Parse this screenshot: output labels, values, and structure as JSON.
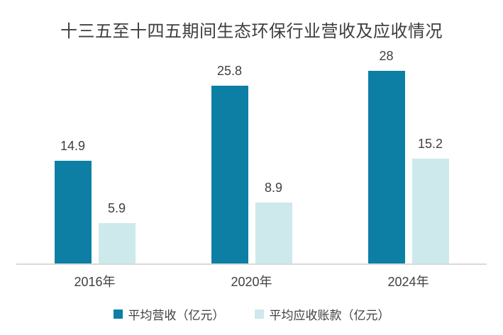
{
  "title": "十三五至十四五期间生态环保行业营收及应收情况",
  "chart_data": {
    "type": "bar",
    "title": "十三五至十四五期间生态环保行业营收及应收情况",
    "categories": [
      "2016年",
      "2020年",
      "2024年"
    ],
    "series": [
      {
        "name": "平均营收（亿元）",
        "color": "#0d7fa5",
        "values": [
          14.9,
          25.8,
          28
        ]
      },
      {
        "name": "平均应收账款（亿元）",
        "color": "#cde9ec",
        "values": [
          5.9,
          8.9,
          15.2
        ]
      }
    ],
    "xlabel": "",
    "ylabel": "",
    "ylim": [
      0,
      28
    ],
    "grid": false,
    "axis_line_color": "#d9d9d9",
    "legend_position": "bottom"
  }
}
